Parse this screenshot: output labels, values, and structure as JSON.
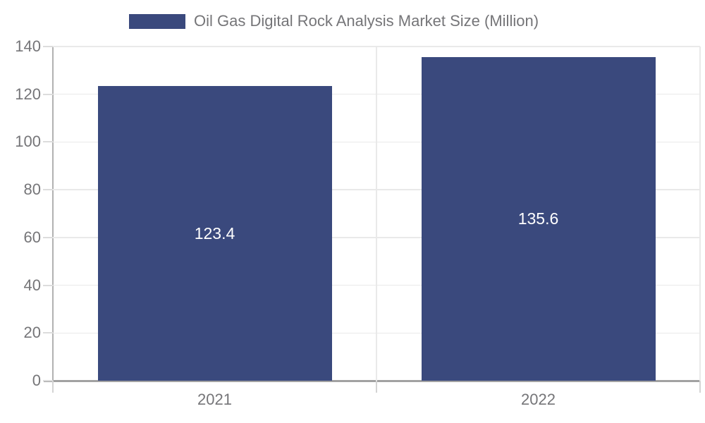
{
  "chart_data": {
    "type": "bar",
    "title": "Oil Gas Digital Rock Analysis Market Size (Million)",
    "categories": [
      "2021",
      "2022"
    ],
    "values": [
      123.4,
      135.6
    ],
    "value_labels": [
      "123.4",
      "135.6"
    ],
    "ytick_labels": [
      "0",
      "20",
      "40",
      "60",
      "80",
      "100",
      "120",
      "140"
    ],
    "ylim": [
      0,
      140
    ],
    "ytick_step": 20,
    "xlabel": "",
    "ylabel": "",
    "grid": true,
    "legend_position": "top-center"
  },
  "colors": {
    "bar": "#3A497D",
    "bar_value_text": "#FFFFFF",
    "axis_text": "#757578",
    "grid_line": "#E9E9E9",
    "x_axis_line": "#A2A2A2",
    "y_axis_line": "#B2B2B2",
    "background": "#FFFFFF"
  }
}
